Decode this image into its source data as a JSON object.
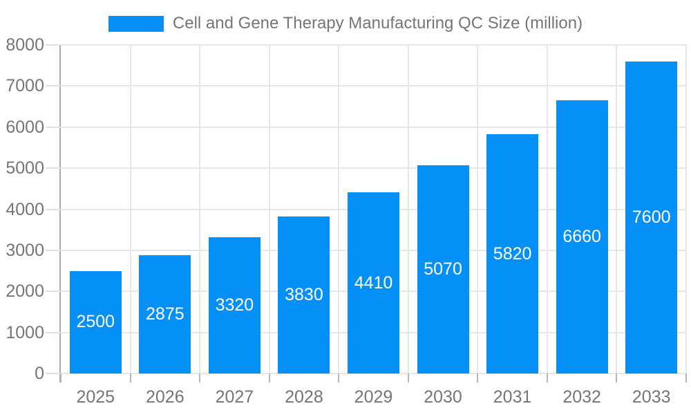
{
  "chart_data": {
    "type": "bar",
    "title": "Cell and Gene Therapy Manufacturing QC Size (million)",
    "categories": [
      "2025",
      "2026",
      "2027",
      "2028",
      "2029",
      "2030",
      "2031",
      "2032",
      "2033"
    ],
    "values": [
      2500,
      2875,
      3320,
      3830,
      4410,
      5070,
      5820,
      6660,
      7600
    ],
    "series": [
      {
        "name": "Cell and Gene Therapy Manufacturing QC Size (million)",
        "values": [
          2500,
          2875,
          3320,
          3830,
          4410,
          5070,
          5820,
          6660,
          7600
        ]
      }
    ],
    "xlabel": "",
    "ylabel": "",
    "ylim": [
      0,
      8000
    ],
    "y_ticks": [
      0,
      1000,
      2000,
      3000,
      4000,
      5000,
      6000,
      7000,
      8000
    ],
    "grid": true,
    "legend_position": "top",
    "bar_color": "#0590F8",
    "bar_label_color": "#ffffff",
    "axis_text_color": "#757575",
    "grid_color": "#e6e6e6",
    "axis_line_color": "#a9a9a9"
  },
  "legend": {
    "label": "Cell and Gene Therapy Manufacturing QC Size (million)"
  }
}
